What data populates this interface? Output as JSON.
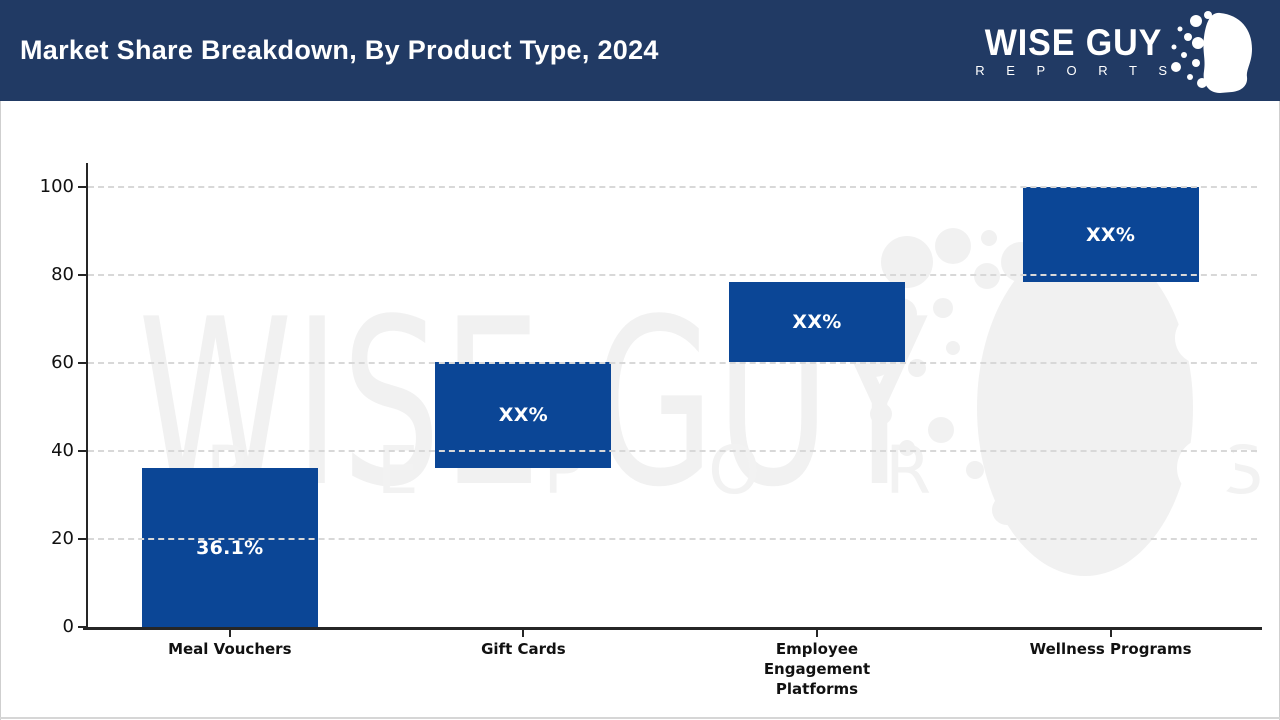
{
  "header": {
    "title": "Market Share Breakdown, By Product Type, 2024",
    "background": "#213a64",
    "logo": {
      "name": "WISE GUY",
      "sub": "R E P O R T S"
    }
  },
  "watermark": {
    "line1": "WISE GUY",
    "line2": "R E P O R T S"
  },
  "chart_data": {
    "type": "bar",
    "subtype": "waterfall",
    "title": "Market Share Breakdown, By Product Type, 2024",
    "categories": [
      "Meal Vouchers",
      "Gift Cards",
      "Employee Engagement Platforms",
      "Wellness Programs"
    ],
    "display_categories": [
      "Meal Vouchers",
      "Gift Cards",
      "Employee\nEngagement\nPlatforms",
      "Wellness Programs"
    ],
    "bars": [
      {
        "category": "Meal Vouchers",
        "start": 0,
        "end": 36.1,
        "value_label": "36.1%"
      },
      {
        "category": "Gift Cards",
        "start": 36.1,
        "end": 60.3,
        "value_label": "XX%"
      },
      {
        "category": "Employee Engagement Platforms",
        "start": 60.3,
        "end": 78.4,
        "value_label": "XX%"
      },
      {
        "category": "Wellness Programs",
        "start": 78.4,
        "end": 100,
        "value_label": "XX%"
      }
    ],
    "yticks": [
      0,
      20,
      40,
      60,
      80,
      100
    ],
    "ylim": [
      0,
      105.5
    ],
    "xlabel": "",
    "ylabel": "",
    "grid": "horizontal-dashed",
    "legend": "none",
    "bar_color": "#0b4696",
    "value_label_color": "#ffffff",
    "axis_color": "#262626",
    "grid_color": "#d8d8d8"
  }
}
